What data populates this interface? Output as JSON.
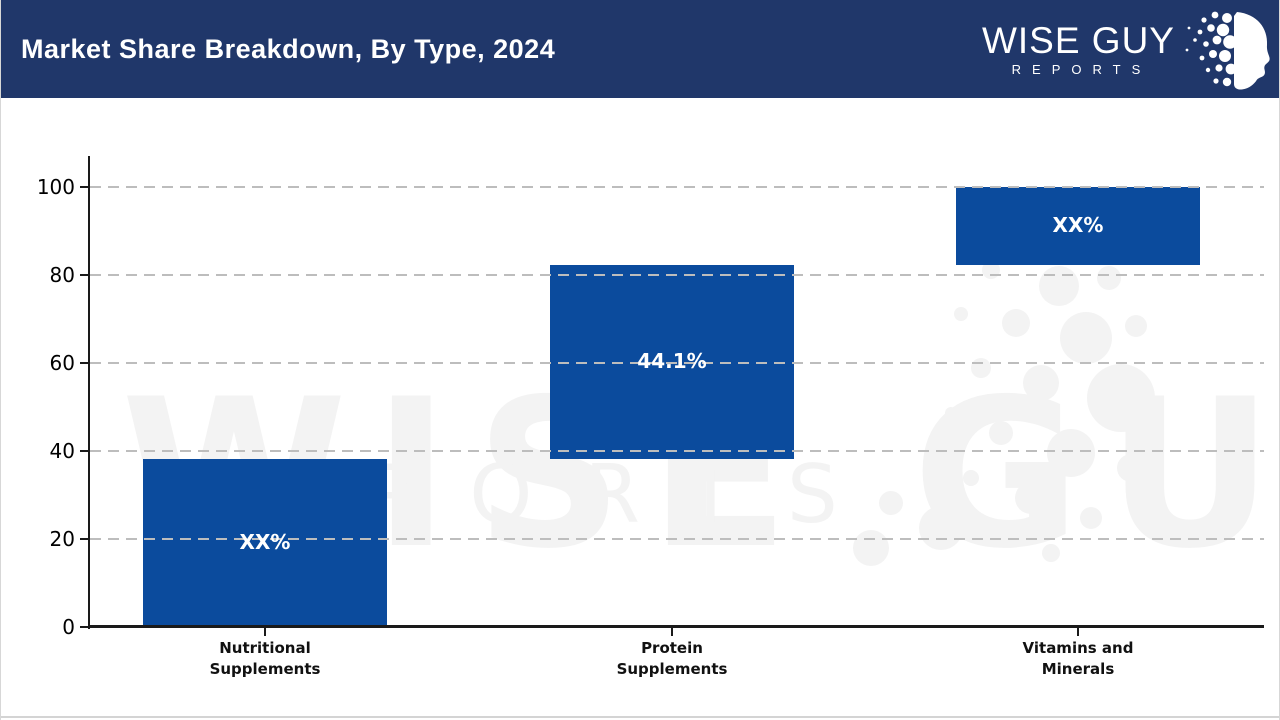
{
  "header": {
    "title": "Market Share Breakdown, By Type, 2024",
    "logo": {
      "line1": "WISE GUY",
      "line2": "REPORTS"
    },
    "background_color": "#20376A"
  },
  "watermark": {
    "line1": "WISE GUY",
    "line2": "REPORTS",
    "color": "#f3f3f3"
  },
  "chart_data": {
    "type": "bar",
    "variant": "floating-waterfall",
    "title": "Market Share Breakdown, By Type, 2024",
    "categories": [
      "Nutritional Supplements",
      "Protein Supplements",
      "Vitamins and Minerals"
    ],
    "category_lines": [
      [
        "Nutritional",
        "Supplements"
      ],
      [
        "Protein",
        "Supplements"
      ],
      [
        "Vitamins and",
        "Minerals"
      ]
    ],
    "segments": [
      {
        "category": "Nutritional Supplements",
        "start": 0,
        "end": 38.2,
        "label": "XX%"
      },
      {
        "category": "Protein Supplements",
        "start": 38.2,
        "end": 82.3,
        "label": "44.1%"
      },
      {
        "category": "Vitamins and Minerals",
        "start": 82.3,
        "end": 100,
        "label": "XX%"
      }
    ],
    "ylim": [
      0,
      100
    ],
    "yticks": [
      0,
      20,
      40,
      60,
      80,
      100
    ],
    "xlabel": "",
    "ylabel": "",
    "grid": "horizontal-dashed",
    "legend": "none",
    "bar_color": "#0b4b9d",
    "bar_label_color": "#ffffff",
    "grid_color": "#bdbdbd",
    "axis_color": "#1a1a1a",
    "tick_label_color": "#000000"
  }
}
